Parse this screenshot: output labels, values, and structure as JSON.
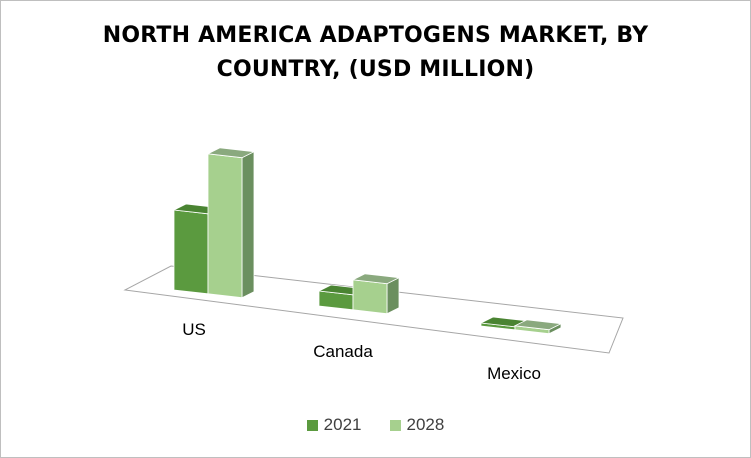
{
  "chart_data": {
    "type": "bar",
    "title_lines": [
      "NORTH AMERICA ADAPTOGENS MARKET, BY",
      "COUNTRY, (USD MILLION)"
    ],
    "categories": [
      "US",
      "Canada",
      "Mexico"
    ],
    "series": [
      {
        "name": "2021",
        "values": [
          80,
          15,
          3
        ],
        "color": "#5b9a3f",
        "color_side": "#3f7a28",
        "color_top": "#4a8432"
      },
      {
        "name": "2028",
        "values": [
          140,
          30,
          4
        ],
        "color": "#a6d08e",
        "color_side": "#6b8f5f",
        "color_top": "#8aa97e"
      }
    ],
    "style": "3d-clustered-column",
    "legend_position": "bottom",
    "gridlines": false,
    "value_axis_visible": false
  }
}
